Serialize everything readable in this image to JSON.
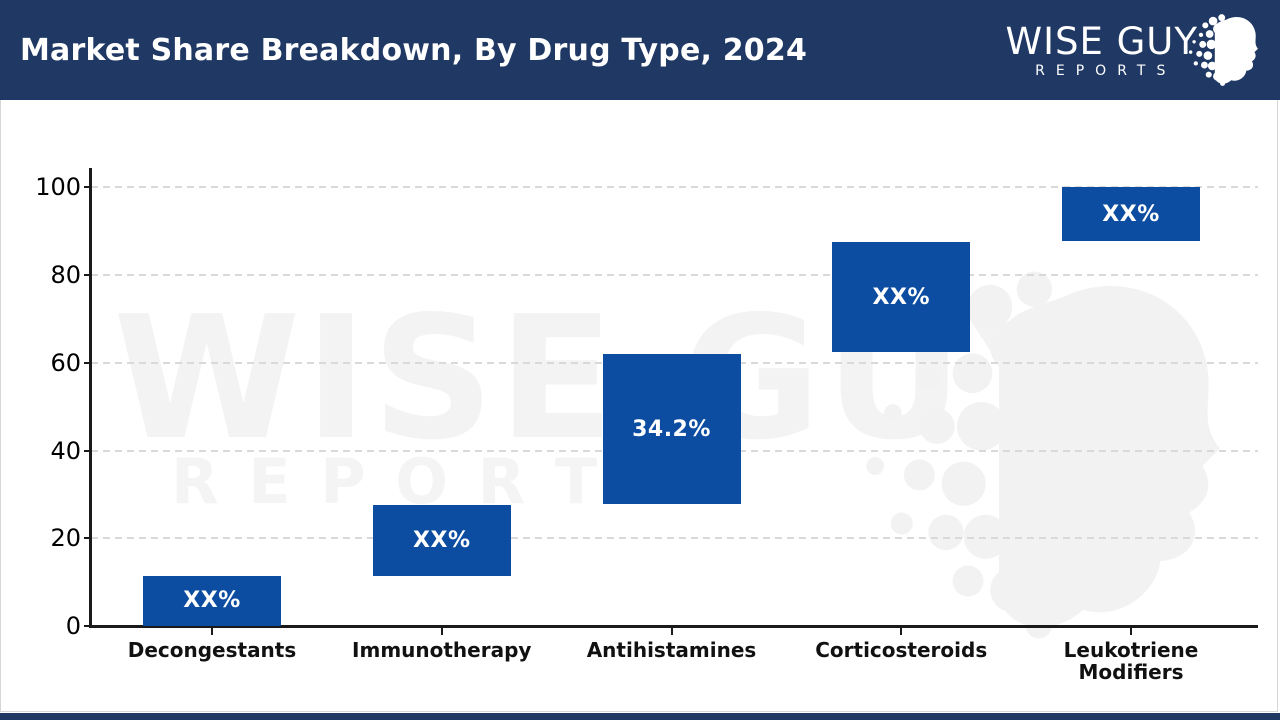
{
  "header": {
    "title": "Market Share Breakdown, By Drug Type, 2024",
    "brand": {
      "line1": "WISE GUY",
      "line2": "REPORTS"
    },
    "bg_color": "#1F3864"
  },
  "watermark": {
    "line1": "WISE GUY",
    "line2": "R E P O R T S"
  },
  "chart_data": {
    "type": "bar",
    "subtype": "waterfall-floating-bars",
    "title": "Market Share Breakdown, By Drug Type, 2024",
    "categories": [
      "Decongestants",
      "Immunotherapy",
      "Antihistamines",
      "Corticosteroids",
      "Leukotriene Modifiers"
    ],
    "segments": [
      {
        "category": "Decongestants",
        "start": 0,
        "end": 11.4,
        "label": "XX%"
      },
      {
        "category": "Immunotherapy",
        "start": 11.4,
        "end": 27.6,
        "label": "XX%"
      },
      {
        "category": "Antihistamines",
        "start": 27.8,
        "end": 62.0,
        "label": "34.2%"
      },
      {
        "category": "Corticosteroids",
        "start": 62.4,
        "end": 87.6,
        "label": "XX%"
      },
      {
        "category": "Leukotriene Modifiers",
        "start": 87.8,
        "end": 100,
        "label": "XX%"
      }
    ],
    "values": [
      11.4,
      16.2,
      34.2,
      25.2,
      12.2
    ],
    "bar_labels": [
      "XX%",
      "XX%",
      "34.2%",
      "XX%",
      "XX%"
    ],
    "yticks": [
      0,
      20,
      40,
      60,
      80,
      100
    ],
    "ylim": [
      0,
      104.5
    ],
    "xlabel": "",
    "ylabel": "",
    "grid": "horizontal-dashed",
    "legend": "none",
    "bar_color": "#0D4DA1",
    "bar_label_color": "#FFFFFF"
  }
}
